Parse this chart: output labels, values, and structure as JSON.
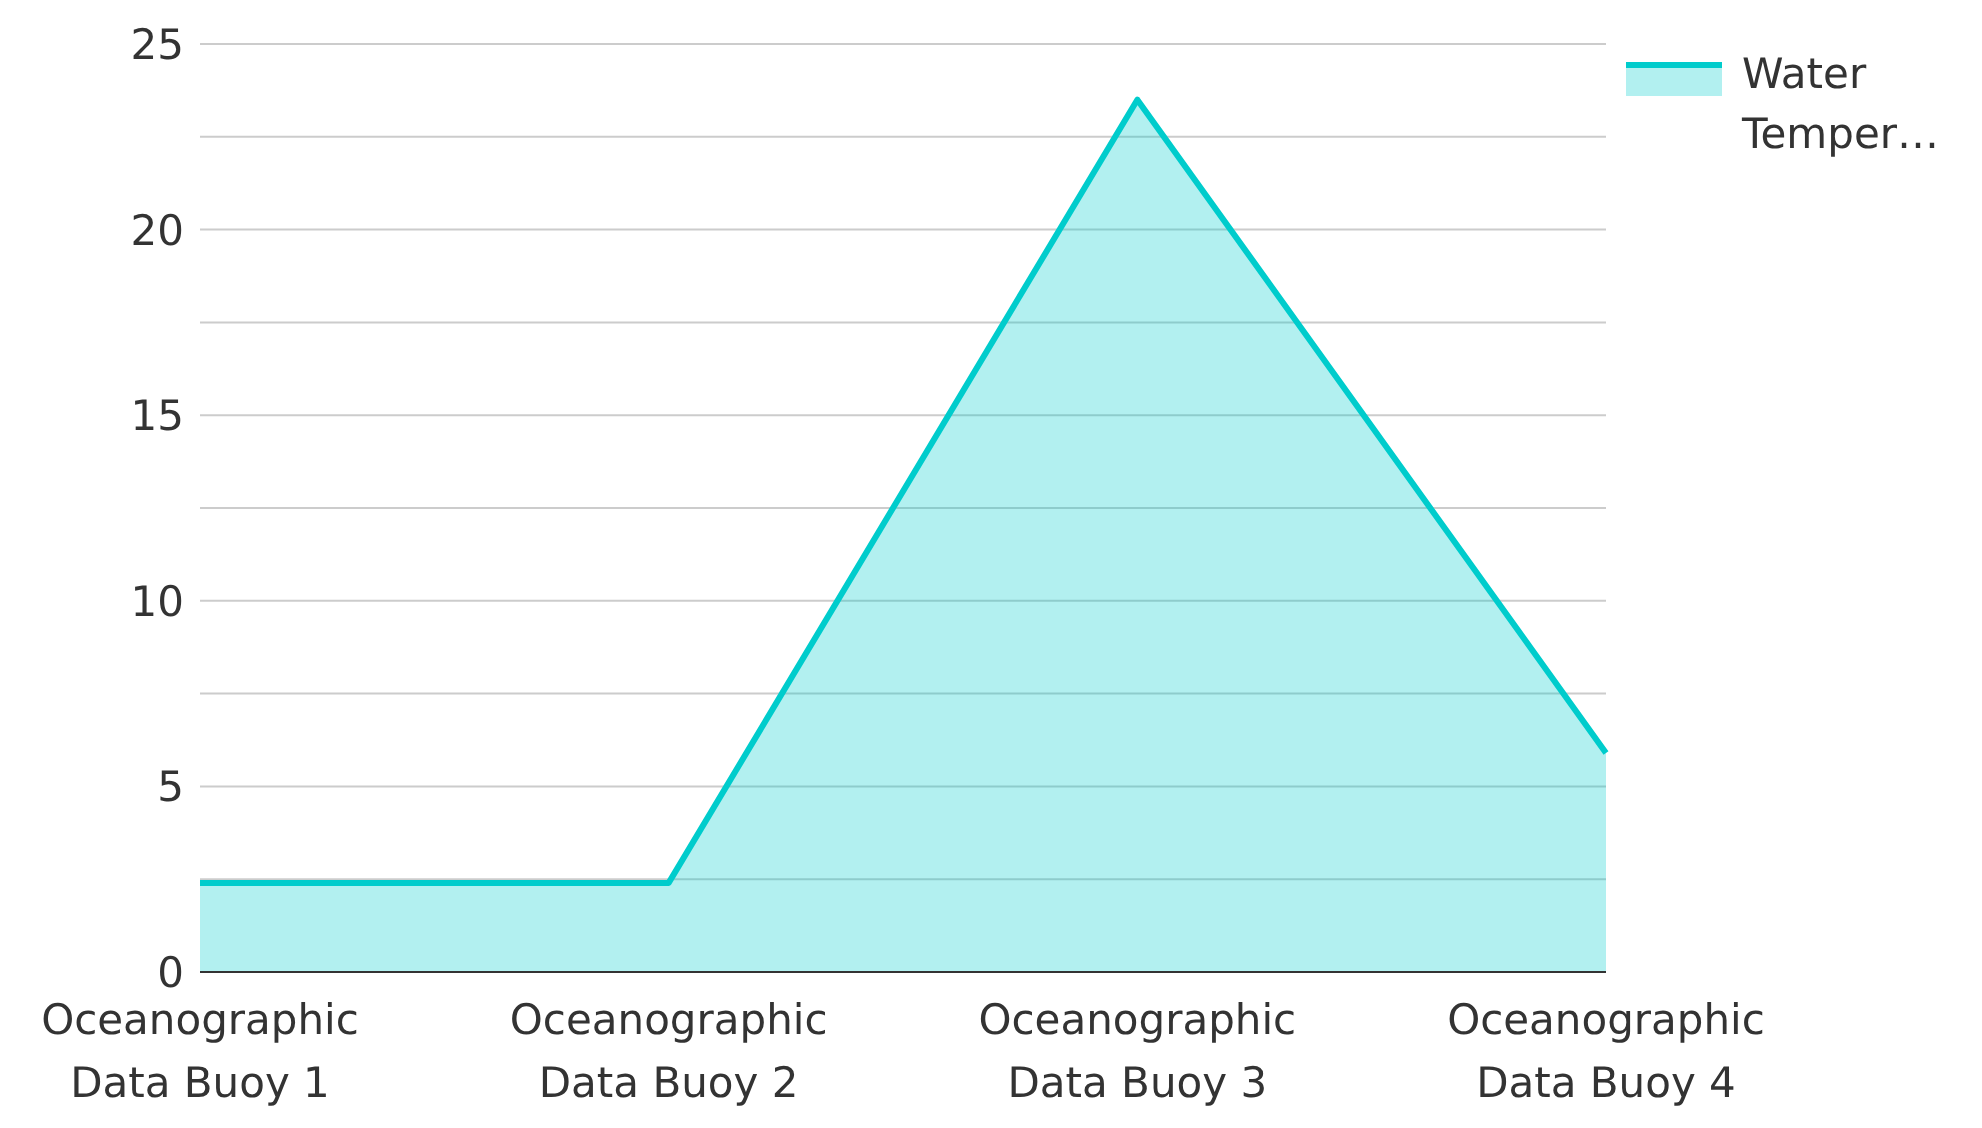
{
  "chart_data": {
    "type": "area",
    "categories": [
      "Oceanographic Data Buoy 1",
      "Oceanographic Data Buoy 2",
      "Oceanographic Data Buoy 3",
      "Oceanographic Data Buoy 4"
    ],
    "series": [
      {
        "name": "Water Temper…",
        "color": "#00cccc",
        "values": [
          2.4,
          2.4,
          23.5,
          5.9
        ]
      }
    ],
    "ylim": [
      0,
      25
    ],
    "yticks": [
      0,
      {
        "value": 2.5,
        "label": null
      },
      5,
      {
        "value": 7.5,
        "label": null
      },
      10,
      {
        "value": 12.5,
        "label": null
      },
      15,
      {
        "value": 17.5,
        "label": null
      },
      20,
      {
        "value": 22.5,
        "label": null
      },
      25
    ],
    "grid": "y",
    "legend": "top right"
  }
}
